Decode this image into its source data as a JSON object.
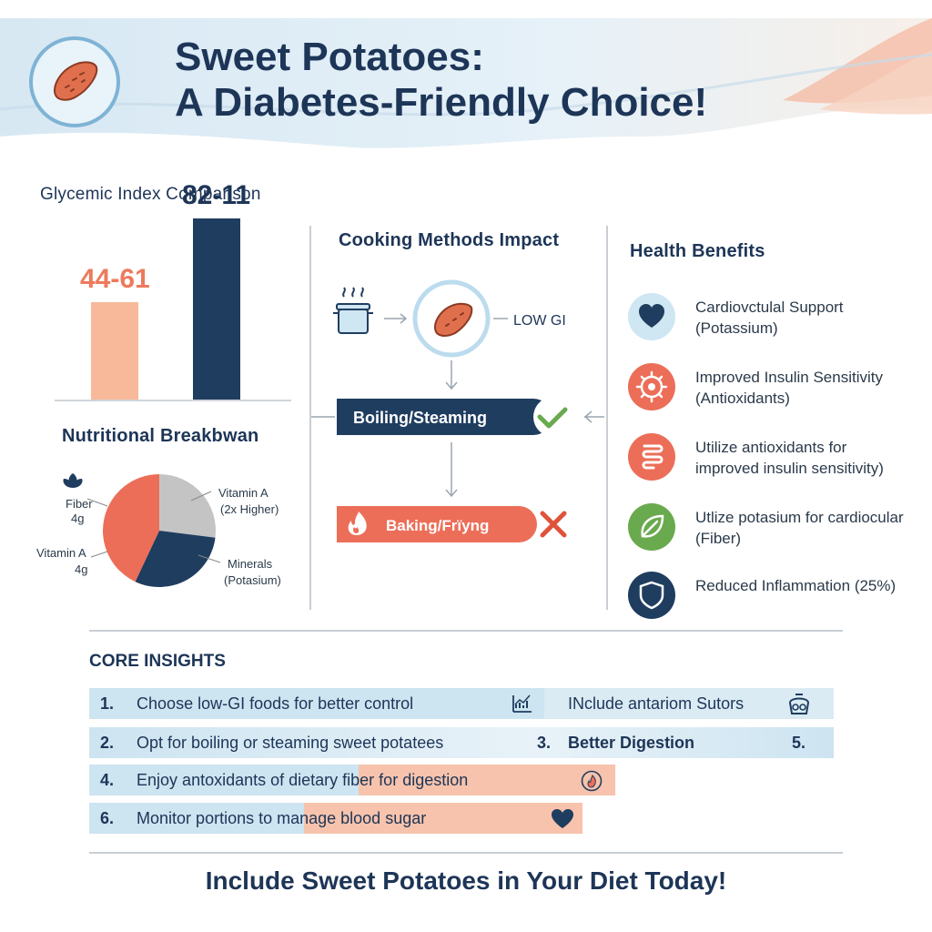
{
  "header": {
    "title_line1": "Sweet Potatoes:",
    "title_line2": "A Diabetes-Friendly Choice!",
    "logo_icon": "sweet-potato-icon"
  },
  "gi_section": {
    "title": "Glycemic Index Comparison",
    "chart_data": {
      "type": "bar",
      "categories": [
        "",
        ""
      ],
      "values": [
        44,
        82
      ],
      "value_labels": [
        "44-61",
        "82-11"
      ],
      "colors": [
        "#f7b99a",
        "#1f3d5f"
      ],
      "label_colors": [
        "#ec7a5c",
        "#1d3557"
      ],
      "ylim": [
        0,
        100
      ]
    }
  },
  "nutrition_section": {
    "title": "Nutritional Breakbwan",
    "chart_data": {
      "type": "pie",
      "slices": [
        {
          "label": "Vitamin A",
          "sublabel": "(2x Higher)",
          "value": 0.27,
          "color": "#c4c4c4"
        },
        {
          "label": "Minerals",
          "sublabel": "(Potasium)",
          "value": 0.3,
          "color": "#1f3d5f"
        },
        {
          "label": "Vitamin A",
          "sublabel": "4g",
          "value": 0.43,
          "color": "#ec6e58"
        }
      ],
      "extra_label": {
        "label": "Fiber",
        "sublabel": "4g",
        "icon": "leaf-icon"
      }
    }
  },
  "cooking_section": {
    "title": "Cooking Methods Impact",
    "pot_icon": "steaming-pot-icon",
    "potato_icon": "sweet-potato-icon",
    "low_gi_label": "LOW GI",
    "good_method": {
      "label": "Boiling/Steaming",
      "color": "#1f3d5f",
      "status_icon": "check-icon"
    },
    "bad_method": {
      "label": "Baking/Frïyng",
      "color": "#ec6e58",
      "status_icon": "cross-icon",
      "leading_icon": "flame-icon"
    }
  },
  "benefits_section": {
    "title": "Health Benefits",
    "items": [
      {
        "line1": "Cardiovctulal Support",
        "line2": "(Potassium)",
        "icon": "heart-icon",
        "color": "#cfe6f3"
      },
      {
        "line1": "Improved Insulin Sensitivity",
        "line2": "(Antioxidants)",
        "icon": "cell-icon",
        "color": "#ec6e58"
      },
      {
        "line1": "Utilize antioxidants for",
        "line2": "improved insulin sensitivity)",
        "icon": "intestine-icon",
        "color": "#ec6e58"
      },
      {
        "line1": "Utlize potasium for cardiocular",
        "line2": "(Fiber)",
        "icon": "leaf-icon",
        "color": "#6aaa4f"
      },
      {
        "line1": "Reduced Inflammation (25%)",
        "line2": "",
        "icon": "shield-icon",
        "color": "#1f3d5f"
      }
    ]
  },
  "insights": {
    "title": "CORE INSIGHTS",
    "rows": [
      {
        "num": "1.",
        "text": "Choose low-GI foods for better control",
        "icon": "chart-icon",
        "right_text": "INclude antariom Sutors",
        "right_icon": "scale-icon"
      },
      {
        "num": "2.",
        "text": "Opt for boiling or steaming sweet potatees",
        "mid_num": "3.",
        "mid_text": "Better Digestion",
        "right_num": "5."
      },
      {
        "num": "4.",
        "text": "Enjoy antoxidants of dietary fiber for digestion",
        "icon": "flame-icon"
      },
      {
        "num": "6.",
        "text": "Monitor portions to manage blood sugar",
        "icon": "heart-icon"
      }
    ]
  },
  "footer": {
    "cta": "Include Sweet Potatoes in Your Diet Today!"
  }
}
